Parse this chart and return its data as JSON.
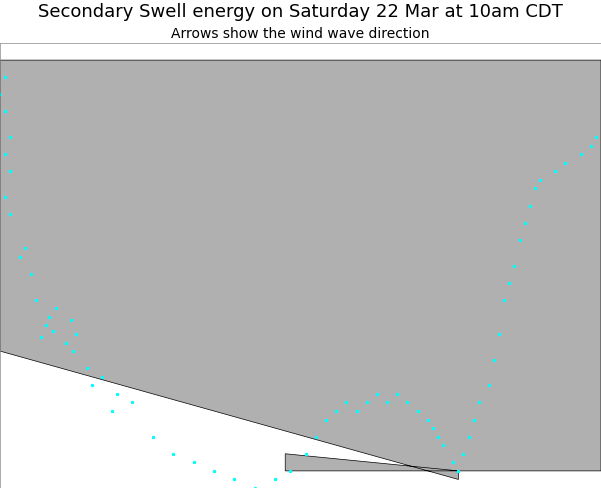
{
  "title": "Secondary Swell energy on Saturday 22 Mar at 10am CDT",
  "subtitle": "Arrows show the wind wave direction",
  "title_fontsize": 13,
  "subtitle_fontsize": 10,
  "bg_color": "#ffffff",
  "header_bg": "#f0f0f0",
  "map_bg": "#aaaaaa",
  "water_color": "#000000",
  "land_color": "#b0b0b0",
  "border_color": "#000000",
  "energy_color": "#00ffff",
  "fig_width": 6.01,
  "fig_height": 4.89,
  "dpi": 100,
  "extent": [
    -125,
    -66,
    24,
    50
  ],
  "pacific_energy_points": [
    [
      -120.5,
      33.5
    ],
    [
      -121.0,
      32.8
    ],
    [
      -119.8,
      33.2
    ],
    [
      -120.2,
      34.0
    ],
    [
      -118.5,
      32.5
    ],
    [
      -117.8,
      32.0
    ],
    [
      -116.5,
      31.0
    ],
    [
      -115.0,
      30.5
    ],
    [
      -113.5,
      29.5
    ],
    [
      -112.0,
      29.0
    ],
    [
      -118.0,
      33.8
    ],
    [
      -119.5,
      34.5
    ],
    [
      -121.5,
      35.0
    ],
    [
      -122.0,
      36.5
    ],
    [
      -123.0,
      37.5
    ],
    [
      -122.5,
      38.0
    ],
    [
      -124.0,
      40.0
    ],
    [
      -124.5,
      41.0
    ],
    [
      -124.0,
      42.5
    ],
    [
      -124.5,
      43.5
    ],
    [
      -124.0,
      44.5
    ],
    [
      -124.5,
      46.0
    ],
    [
      -125.0,
      47.0
    ],
    [
      -124.5,
      48.0
    ],
    [
      -117.5,
      33.0
    ],
    [
      -116.0,
      30.0
    ],
    [
      -114.0,
      28.5
    ],
    [
      -110.0,
      27.0
    ],
    [
      -108.0,
      26.0
    ],
    [
      -106.0,
      25.5
    ],
    [
      -104.0,
      25.0
    ],
    [
      -102.0,
      24.5
    ],
    [
      -100.0,
      24.0
    ],
    [
      -98.0,
      24.5
    ],
    [
      -96.5,
      25.0
    ],
    [
      -95.0,
      26.0
    ],
    [
      -94.0,
      27.0
    ],
    [
      -93.0,
      28.0
    ],
    [
      -92.0,
      28.5
    ],
    [
      -91.0,
      29.0
    ],
    [
      -90.0,
      28.5
    ],
    [
      -89.0,
      29.0
    ],
    [
      -88.0,
      29.5
    ],
    [
      -87.0,
      29.0
    ],
    [
      -86.0,
      29.5
    ],
    [
      -85.0,
      29.0
    ],
    [
      -84.0,
      28.5
    ],
    [
      -83.0,
      28.0
    ],
    [
      -82.5,
      27.5
    ],
    [
      -82.0,
      27.0
    ],
    [
      -81.5,
      26.5
    ],
    [
      -80.5,
      25.5
    ],
    [
      -80.0,
      25.0
    ],
    [
      -79.5,
      26.0
    ],
    [
      -79.0,
      27.0
    ],
    [
      -78.5,
      28.0
    ],
    [
      -78.0,
      29.0
    ],
    [
      -77.0,
      30.0
    ],
    [
      -76.5,
      31.5
    ],
    [
      -76.0,
      33.0
    ],
    [
      -75.5,
      35.0
    ],
    [
      -75.0,
      36.0
    ],
    [
      -74.5,
      37.0
    ],
    [
      -74.0,
      38.5
    ],
    [
      -73.5,
      39.5
    ],
    [
      -73.0,
      40.5
    ],
    [
      -72.5,
      41.5
    ],
    [
      -72.0,
      42.0
    ],
    [
      -70.5,
      42.5
    ],
    [
      -69.5,
      43.0
    ],
    [
      -68.0,
      43.5
    ],
    [
      -67.0,
      44.0
    ],
    [
      -66.5,
      44.5
    ]
  ]
}
